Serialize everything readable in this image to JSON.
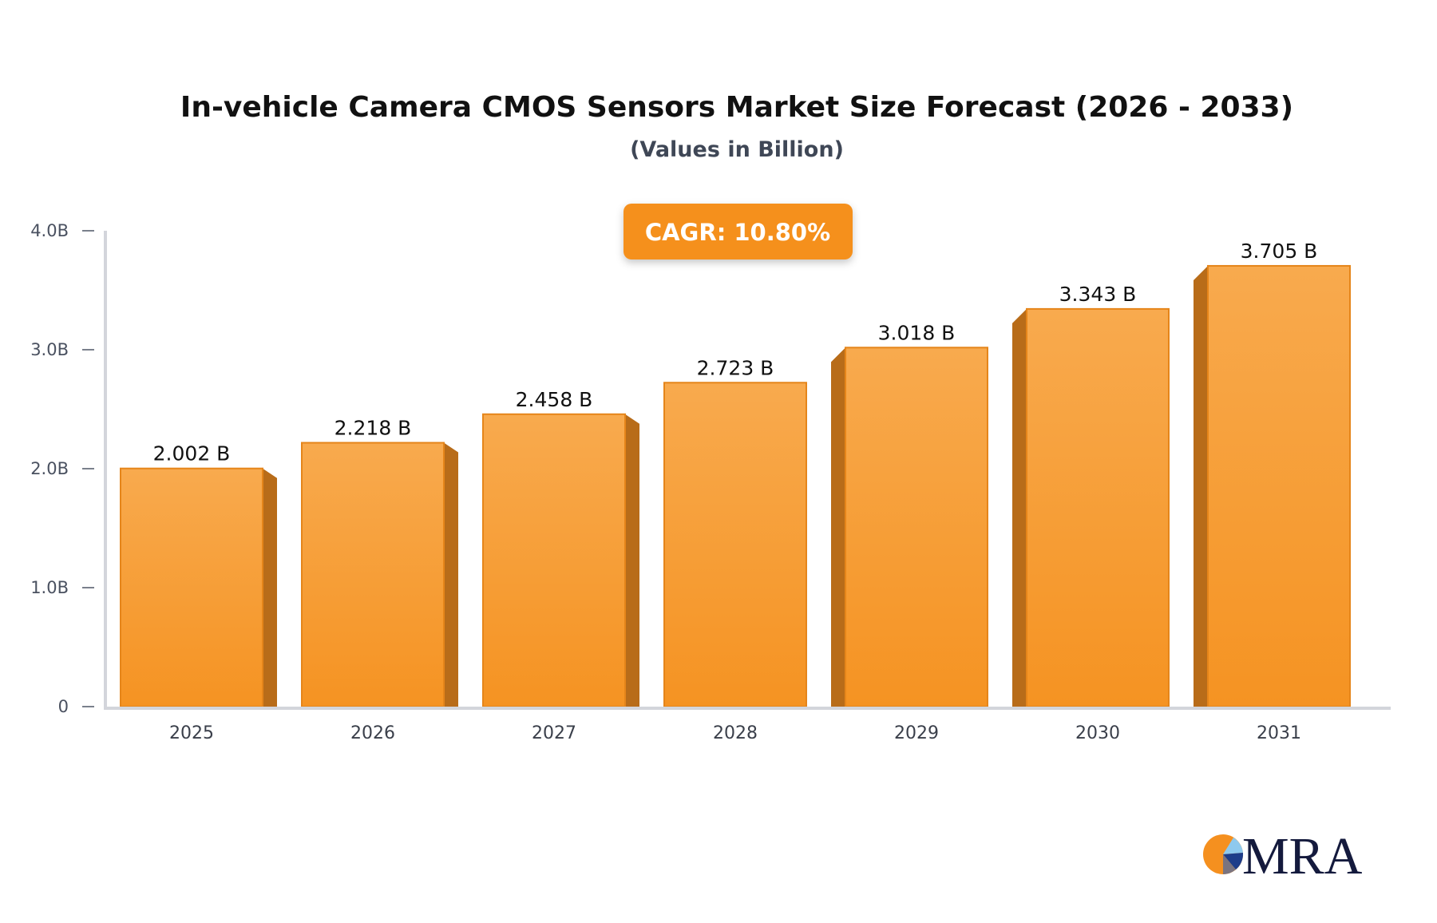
{
  "chart_data": {
    "type": "bar",
    "title": "In-vehicle Camera CMOS Sensors Market Size Forecast (2026 - 2033)",
    "subtitle": "(Values in Billion)",
    "categories": [
      "2025",
      "2026",
      "2027",
      "2028",
      "2029",
      "2030",
      "2031"
    ],
    "values": [
      2.002,
      2.218,
      2.458,
      2.723,
      3.018,
      3.343,
      3.705
    ],
    "value_labels": [
      "2.002 B",
      "2.218 B",
      "2.458 B",
      "2.723 B",
      "3.018 B",
      "3.343 B",
      "3.705 B"
    ],
    "ylim": [
      0,
      4.0
    ],
    "yticks": [
      0,
      1.0,
      2.0,
      3.0,
      4.0
    ],
    "ytick_labels": [
      "0",
      "1.0B",
      "2.0B",
      "3.0B",
      "4.0B"
    ],
    "xlabel": "",
    "ylabel": "",
    "grid": false,
    "annotation": "CAGR: 10.80%",
    "colors": {
      "bar_top": "#f8aa4e",
      "bar_bottom": "#f59322",
      "bar_side": "#b86c19",
      "badge": "#f5901f",
      "axis": "#d3d5db"
    }
  },
  "logo": {
    "text": "MRA"
  }
}
